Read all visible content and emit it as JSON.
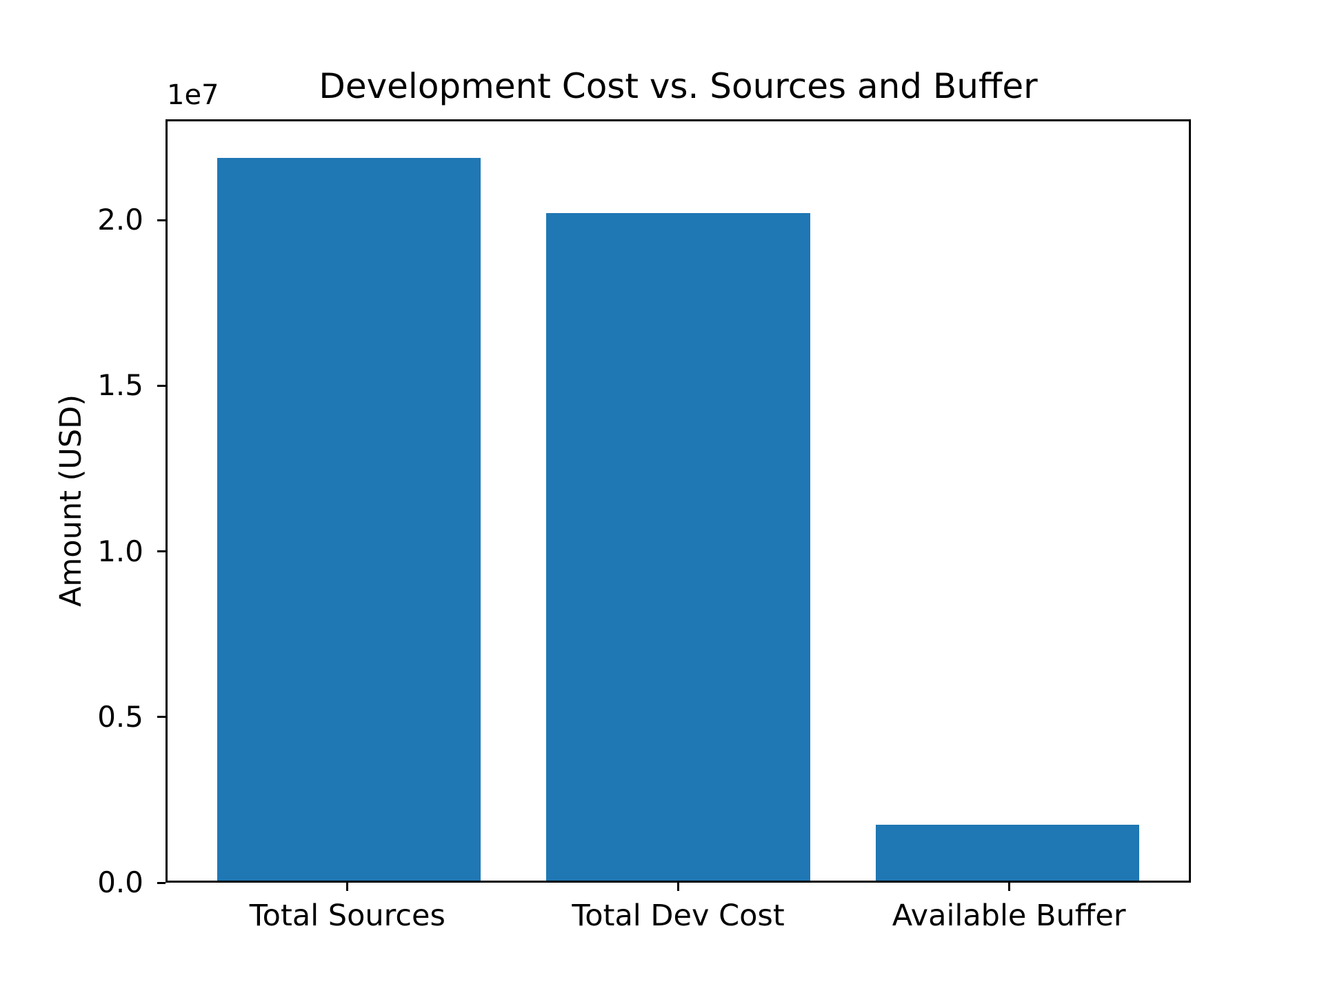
{
  "figure": {
    "background": "#ffffff"
  },
  "chart_data": {
    "type": "bar",
    "title": "Development Cost vs. Sources and Buffer",
    "xlabel": "",
    "ylabel": "Amount (USD)",
    "offset_text": "1e7",
    "categories": [
      "Total Sources",
      "Total Dev Cost",
      "Available Buffer"
    ],
    "values": [
      21940000,
      20250000,
      1690000
    ],
    "bar_color": "#1f77b4",
    "axis_color": "#000000",
    "ylim": [
      0,
      23040000
    ],
    "yticks": [
      {
        "value": 0,
        "label": "0.0"
      },
      {
        "value": 5000000,
        "label": "0.5"
      },
      {
        "value": 10000000,
        "label": "1.0"
      },
      {
        "value": 15000000,
        "label": "1.5"
      },
      {
        "value": 20000000,
        "label": "2.0"
      }
    ],
    "grid": false,
    "legend": null
  }
}
